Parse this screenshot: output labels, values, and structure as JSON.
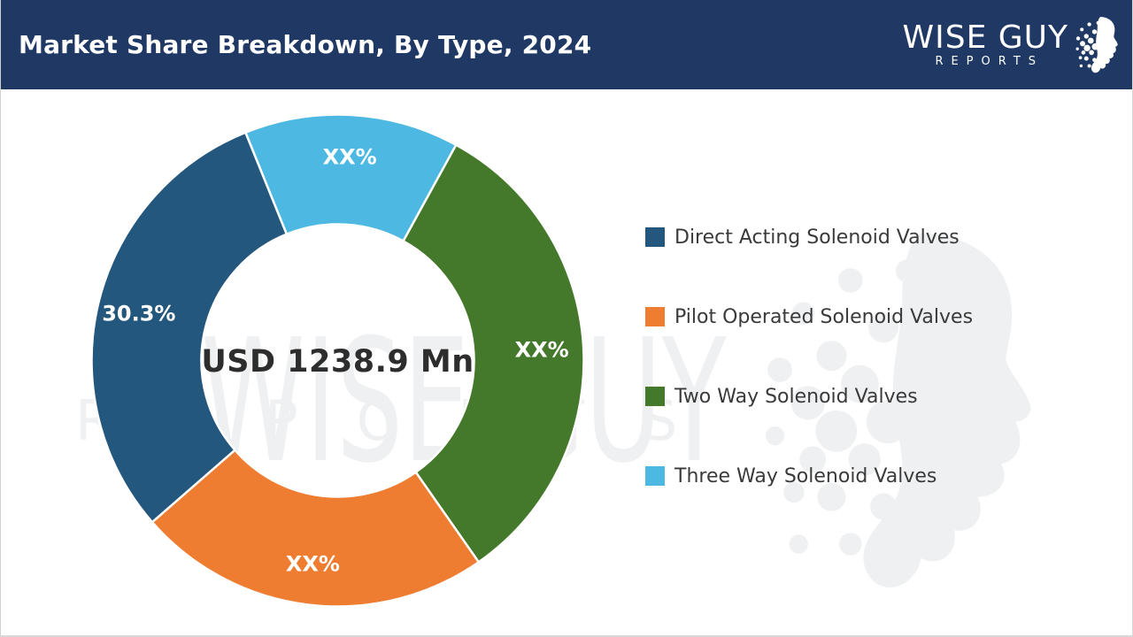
{
  "header": {
    "title": "Market Share Breakdown, By Type, 2024",
    "background_color": "#1f3864",
    "logo": {
      "name": "Wise Guy Reports",
      "primary": "WISE GUY",
      "secondary": "REPORTS"
    }
  },
  "chart_data": {
    "type": "pie",
    "variant": "donut",
    "title": "Market Share Breakdown, By Type, 2024",
    "center_label": "USD 1238.9 Mn",
    "start_angle_deg": 338,
    "direction": "clockwise",
    "legend_position": "right",
    "segments": [
      {
        "name": "Three Way Solenoid Valves",
        "label": "XX%",
        "value": 14.1,
        "color": "#4db9e3"
      },
      {
        "name": "Two Way Solenoid Valves",
        "label": "XX%",
        "value": 32.3,
        "color": "#44782a"
      },
      {
        "name": "Pilot Operated Solenoid Valves",
        "label": "XX%",
        "value": 23.3,
        "color": "#ee7d31"
      },
      {
        "name": "Direct Acting Solenoid Valves",
        "label": "30.3%",
        "value": 30.3,
        "color": "#24577d"
      }
    ]
  },
  "legend": {
    "items": [
      {
        "label": "Direct Acting Solenoid Valves",
        "color": "#24577d"
      },
      {
        "label": "Pilot Operated Solenoid Valves",
        "color": "#ee7d31"
      },
      {
        "label": "Two Way Solenoid Valves",
        "color": "#44782a"
      },
      {
        "label": "Three Way Solenoid Valves",
        "color": "#4db9e3"
      }
    ]
  },
  "watermark": {
    "primary": "WISE GUY",
    "secondary": "REPORTS"
  }
}
